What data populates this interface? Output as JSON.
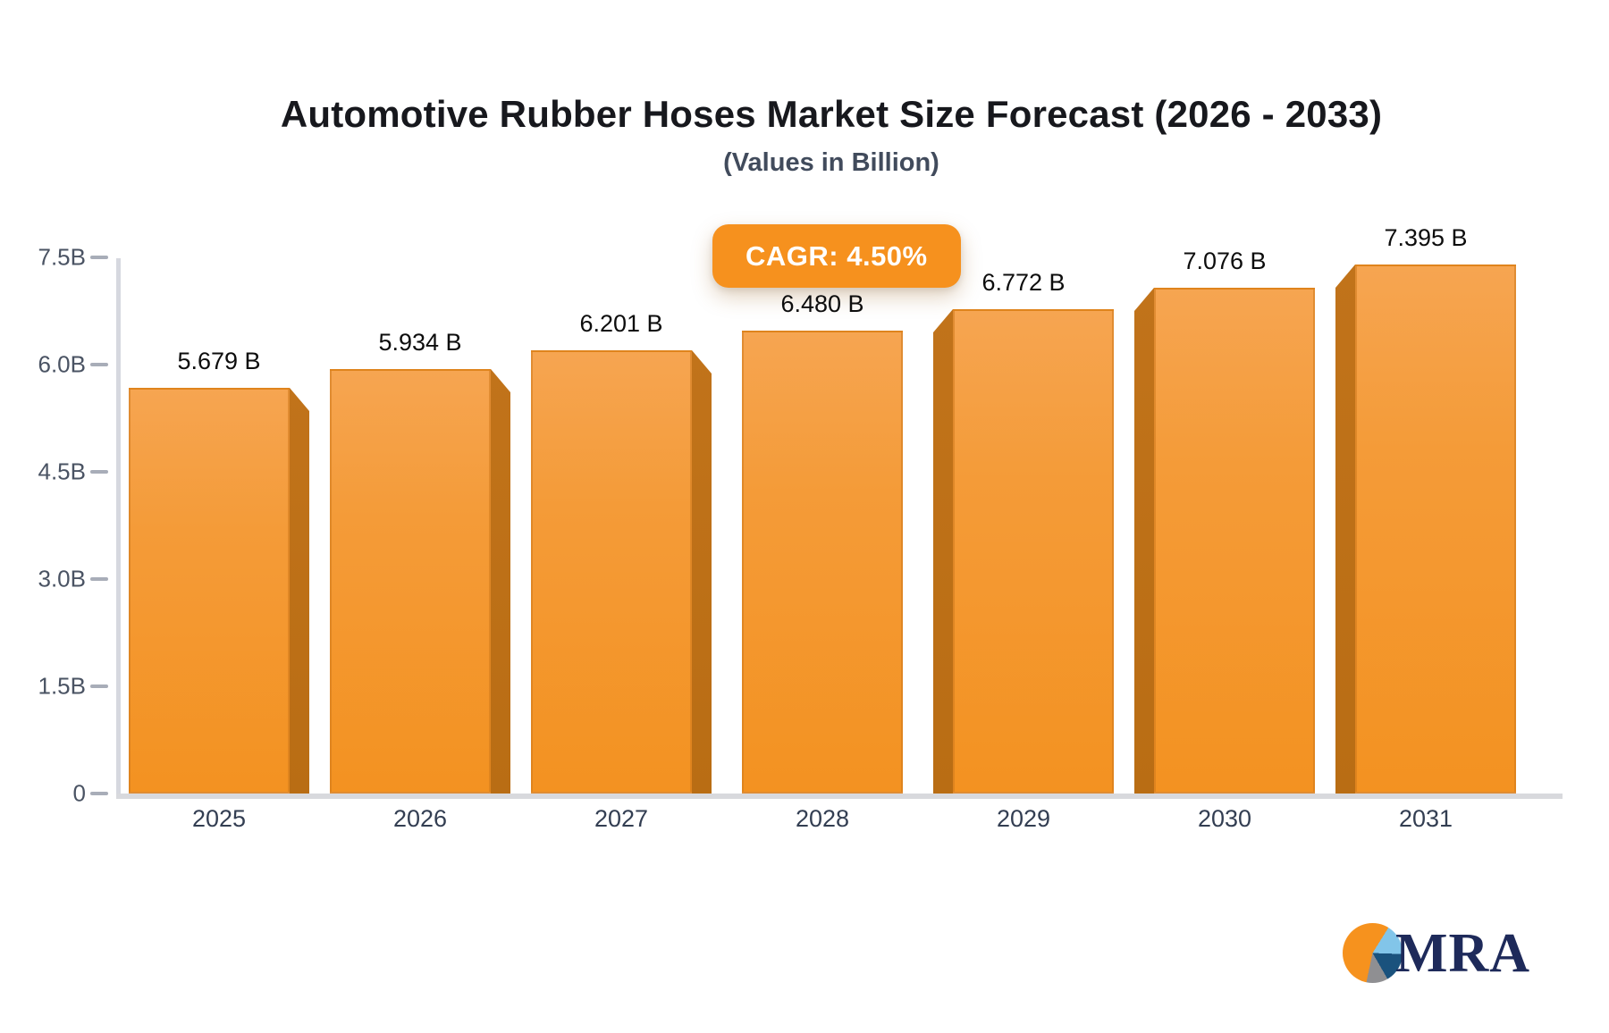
{
  "chart_data": {
    "type": "bar",
    "title": "Automotive Rubber Hoses Market Size Forecast (2026 - 2033)",
    "subtitle": "(Values in Billion)",
    "cagr_label": "CAGR: 4.50%",
    "categories": [
      "2025",
      "2026",
      "2027",
      "2028",
      "2029",
      "2030",
      "2031"
    ],
    "values": [
      5.679,
      5.934,
      6.201,
      6.48,
      6.772,
      7.076,
      7.395
    ],
    "value_labels": [
      "5.679 B",
      "5.934 B",
      "6.201 B",
      "6.480 B",
      "6.772 B",
      "7.076 B",
      "7.395 B"
    ],
    "ylim": [
      0,
      7.5
    ],
    "yticks": [
      0,
      1.5,
      3.0,
      4.5,
      6.0,
      7.5
    ],
    "ytick_labels": [
      "0",
      "1.5B",
      "3.0B",
      "4.5B",
      "6.0B",
      "7.5B"
    ],
    "grid": false,
    "legend": "none",
    "colors": {
      "bar_face_top": "#F6A551",
      "bar_face_bottom": "#F39221",
      "bar_side": "#BD6F16",
      "badge_background": "#F6911E",
      "badge_text": "#FFFFFF",
      "axis_line": "#D6D8DF",
      "tick_text": "#4A5363",
      "value_text": "#0D0D0D"
    }
  },
  "logo": {
    "text": "MRA",
    "pie_colors": {
      "orange": "#F6921E",
      "light_blue": "#82C5E9",
      "navy": "#1A527D",
      "gray": "#8F8F92"
    }
  }
}
